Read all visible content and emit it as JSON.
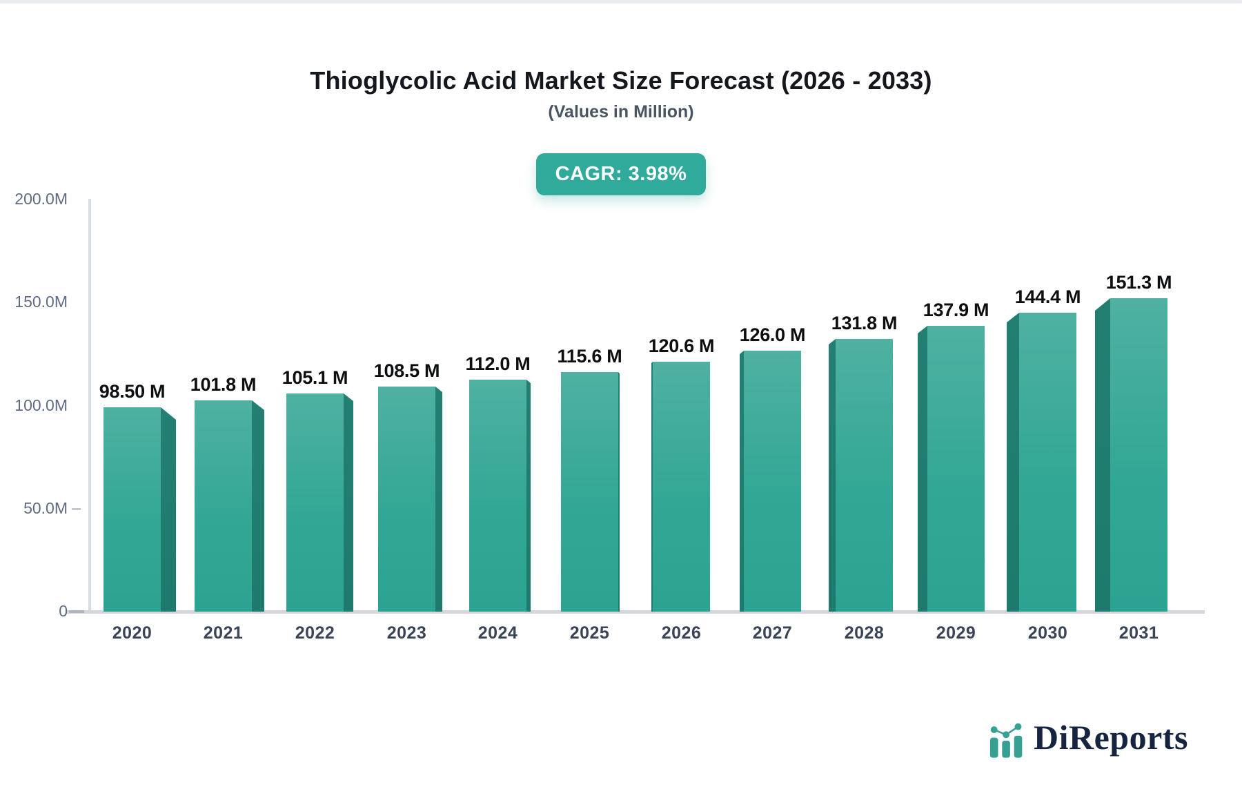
{
  "header": {
    "cagr_label": "CAGR: 3.98%"
  },
  "chart_data": {
    "type": "bar",
    "title": "Thioglycolic Acid Market Size Forecast (2026 - 2033)",
    "subtitle": "(Values in Million)",
    "categories": [
      "2020",
      "2021",
      "2022",
      "2023",
      "2024",
      "2025",
      "2026",
      "2027",
      "2028",
      "2029",
      "2030",
      "2031"
    ],
    "values": [
      98.5,
      101.8,
      105.1,
      108.5,
      112.0,
      115.6,
      120.6,
      126.0,
      131.8,
      137.9,
      144.4,
      151.3
    ],
    "value_labels": [
      "98.50 M",
      "101.8 M",
      "105.1 M",
      "108.5 M",
      "112.0 M",
      "115.6 M",
      "120.6 M",
      "126.0 M",
      "131.8 M",
      "137.9 M",
      "144.4 M",
      "151.3 M"
    ],
    "cagr": "3.98%",
    "ylim": [
      0,
      200
    ],
    "yticks": [
      {
        "label": "200.0M",
        "value": 200,
        "dash": "none"
      },
      {
        "label": "150.0M",
        "value": 150,
        "dash": "none"
      },
      {
        "label": "100.0M",
        "value": 100,
        "dash": "none"
      },
      {
        "label": "50.0M",
        "value": 50,
        "dash": "short"
      },
      {
        "label": "0",
        "value": 0,
        "dash": "long"
      }
    ],
    "grid": false,
    "legend": "none",
    "bar_style": "3d-column"
  },
  "logo": {
    "text": "DiReports",
    "icon": "mini-bar-chart-icon"
  },
  "colors": {
    "bar_face_top": "#4fb1a2",
    "bar_face_bottom": "#2ca392",
    "bar_side": "#1e7a6d",
    "badge_bg": "#2faa9b",
    "badge_text": "#ffffff",
    "axis_line": "#d6d9de",
    "ytick_text": "#5f6b83",
    "xtick_text": "#3a4457",
    "value_text": "#0d0e10",
    "title_text": "#14171c",
    "subtitle_text": "#4a5562",
    "logo_navy": "#16253f",
    "logo_teal": "#36a093"
  }
}
